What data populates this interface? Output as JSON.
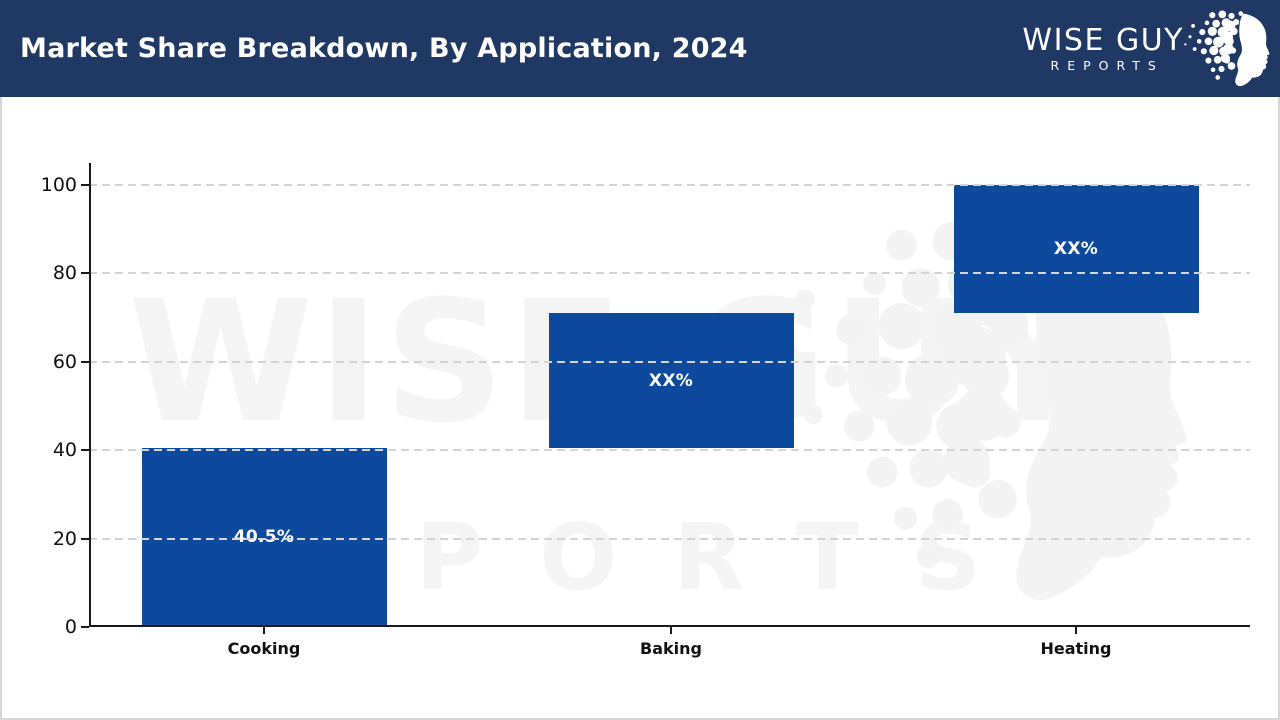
{
  "header": {
    "title": "Market Share Breakdown, By Application, 2024",
    "logo": {
      "line1": "WISE GUY",
      "line2": "REPORTS"
    }
  },
  "watermark": {
    "line1": "WISE GUY",
    "line2": "REPORTS"
  },
  "chart_data": {
    "type": "bar",
    "subtype": "waterfall",
    "title": "Market Share Breakdown, By Application, 2024",
    "categories": [
      "Cooking",
      "Baking",
      "Heating"
    ],
    "segments": [
      {
        "category": "Cooking",
        "start": 0,
        "end": 40.5,
        "label": "40.5%"
      },
      {
        "category": "Baking",
        "start": 40.5,
        "end": 71,
        "label": "XX%"
      },
      {
        "category": "Heating",
        "start": 71,
        "end": 100,
        "label": "XX%"
      }
    ],
    "y_ticks": [
      0,
      20,
      40,
      60,
      80,
      100
    ],
    "ylim": [
      0,
      105
    ],
    "xlabel": "",
    "ylabel": "",
    "grid": "horizontal dashed",
    "legend": "none",
    "bar_color": "#0d4a9e",
    "bar_label_color": "#ffffff"
  },
  "colors": {
    "header_bg": "#1f3864",
    "bar": "#0d4a9e",
    "grid": "#d4d4d4",
    "axis": "#1a1a1a",
    "watermark": "#f4f4f4"
  }
}
